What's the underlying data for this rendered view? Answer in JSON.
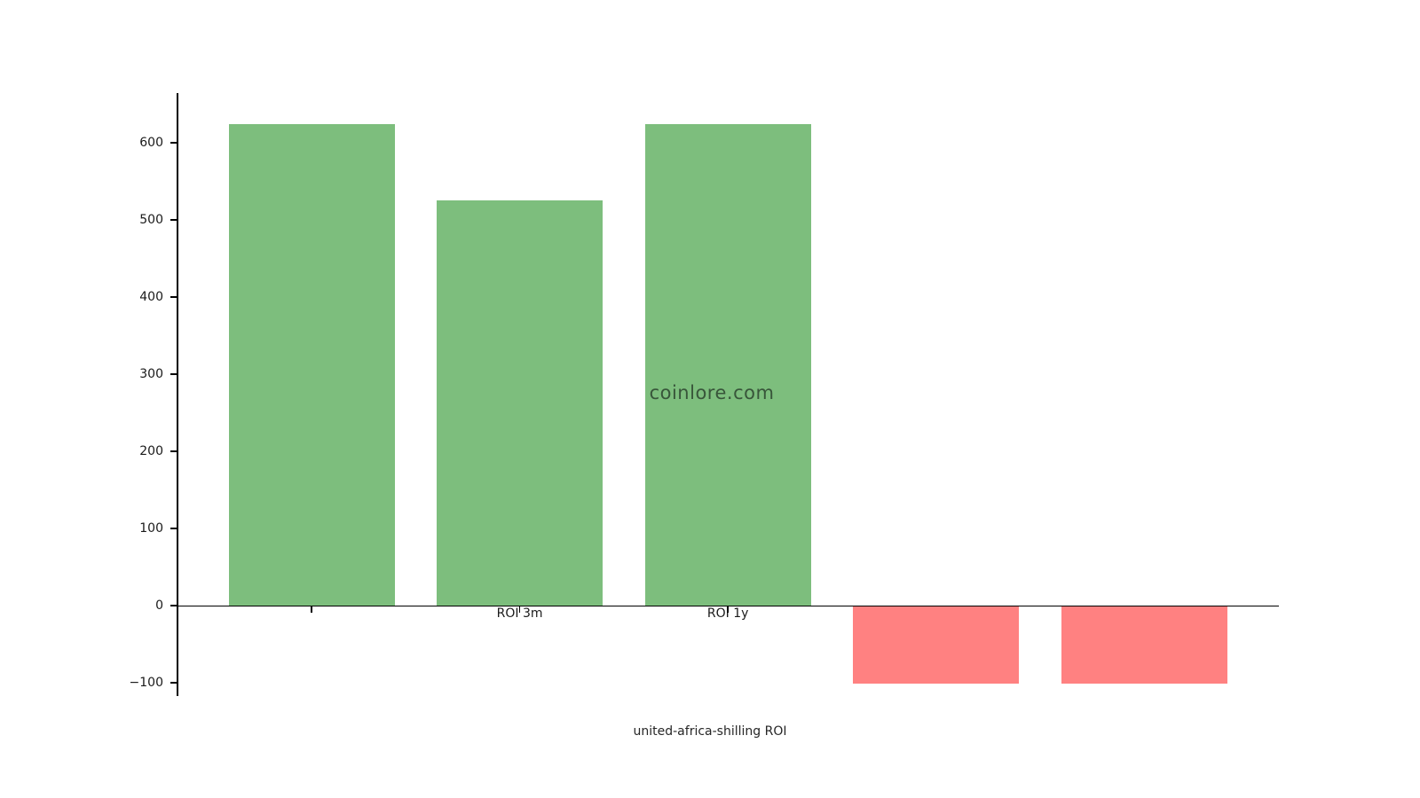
{
  "watermark": {
    "text": "coinlore.com",
    "color": "#2a3e2c"
  },
  "chart_data": {
    "type": "bar",
    "title": "united-africa-shilling ROI",
    "categories": [
      "",
      "ROI 3m",
      "ROI 1y",
      "",
      ""
    ],
    "values": [
      624,
      525,
      624,
      -100,
      -100
    ],
    "positive_color": "#7dbe7d",
    "negative_color": "#ff8181",
    "yticks": [
      600,
      500,
      400,
      300,
      200,
      100,
      0,
      -100
    ],
    "ylim": [
      -117,
      664
    ],
    "xlabel": "",
    "ylabel": "",
    "grid": false,
    "legend": null,
    "axis_color": "#000000",
    "tick_label_color": "#1a1a1a"
  }
}
